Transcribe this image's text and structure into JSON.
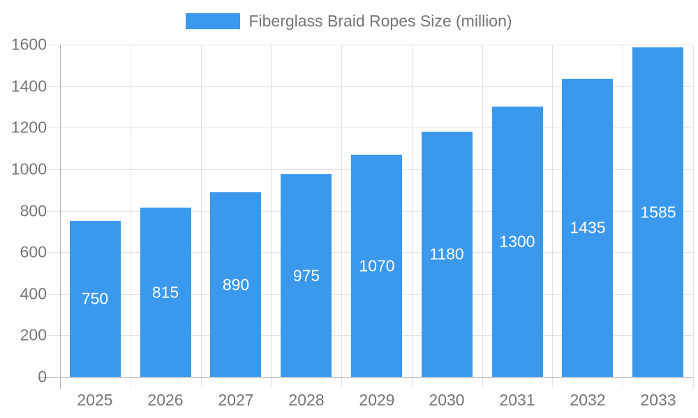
{
  "legend": {
    "label": "Fiberglass Braid Ropes Size (million)"
  },
  "colors": {
    "bar": "#3b99ed",
    "grid": "#e2e2e2",
    "axis": "#b0b0b0",
    "text": "#757575",
    "value_label": "#ffffff",
    "background": "#ffffff"
  },
  "chart_data": {
    "type": "bar",
    "title": "Fiberglass Braid Ropes Size (million)",
    "categories": [
      "2025",
      "2026",
      "2027",
      "2028",
      "2029",
      "2030",
      "2031",
      "2032",
      "2033"
    ],
    "values": [
      750,
      815,
      890,
      975,
      1070,
      1180,
      1300,
      1435,
      1585
    ],
    "series_name": "Fiberglass Braid Ropes Size (million)",
    "xlabel": "",
    "ylabel": "",
    "ylim": [
      0,
      1600
    ],
    "ytick_step": 200,
    "ytick_labels": [
      "0",
      "200",
      "400",
      "600",
      "800",
      "1000",
      "1200",
      "1400",
      "1600"
    ],
    "grid": true,
    "value_labels": "inside-center",
    "legend_position": "top-center"
  }
}
